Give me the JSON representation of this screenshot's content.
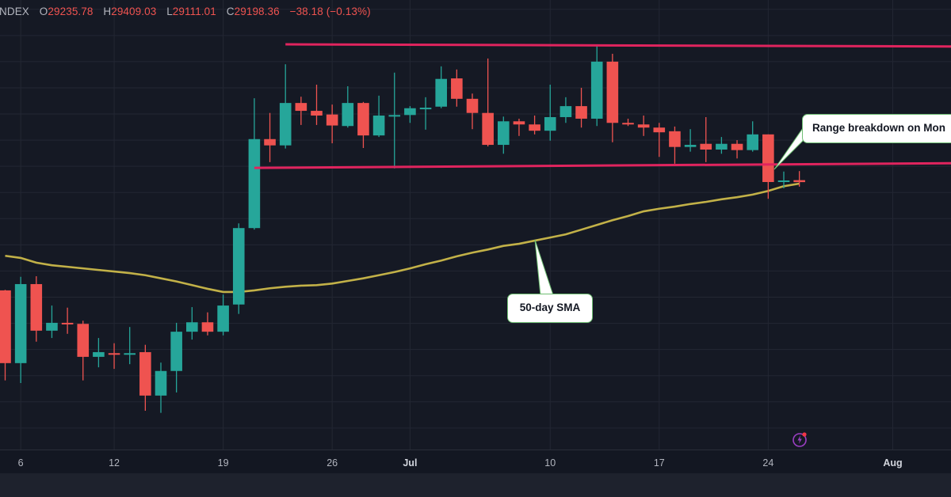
{
  "legend": {
    "symbol": "NDEX",
    "open_label": "O",
    "open": "29235.78",
    "high_label": "H",
    "high": "29409.03",
    "low_label": "L",
    "low": "29111.01",
    "close_label": "C",
    "close": "29198.36",
    "change": "−38.18 (−0.13%)"
  },
  "annotations": {
    "sma_callout": "50-day SMA",
    "range_callout": "Range breakdown on Mon"
  },
  "icons": {
    "alert": "lightning-icon"
  },
  "colors": {
    "up": "#26a69a",
    "down": "#ef5350",
    "sma": "#c2b148",
    "range_lines": "#e0245e",
    "background": "#151924"
  },
  "chart_data": {
    "type": "candlestick",
    "title": "",
    "xlabel": "",
    "ylabel": "",
    "grid": true,
    "y_grid_step": 500,
    "x_ticks": [
      {
        "label": "6",
        "date": "Jun 6"
      },
      {
        "label": "12",
        "date": "Jun 12"
      },
      {
        "label": "19",
        "date": "Jun 19"
      },
      {
        "label": "26",
        "date": "Jun 26"
      },
      {
        "label": "Jul",
        "date": "Jul 1",
        "month": true
      },
      {
        "label": "10",
        "date": "Jul 10"
      },
      {
        "label": "17",
        "date": "Jul 17"
      },
      {
        "label": "24",
        "date": "Jul 24"
      },
      {
        "label": "Aug",
        "date": "Aug 1",
        "month": true
      }
    ],
    "candles": [
      {
        "date": "Jun 5",
        "o": 27130,
        "h": 27140,
        "l": 25410,
        "c": 25740
      },
      {
        "date": "Jun 6",
        "o": 25740,
        "h": 27390,
        "l": 25360,
        "c": 27250
      },
      {
        "date": "Jun 7",
        "o": 27250,
        "h": 27400,
        "l": 26150,
        "c": 26360
      },
      {
        "date": "Jun 8",
        "o": 26360,
        "h": 26840,
        "l": 26220,
        "c": 26510
      },
      {
        "date": "Jun 9",
        "o": 26510,
        "h": 26800,
        "l": 26300,
        "c": 26480
      },
      {
        "date": "Jun 10",
        "o": 26490,
        "h": 26550,
        "l": 25410,
        "c": 25860
      },
      {
        "date": "Jun 11",
        "o": 25860,
        "h": 26220,
        "l": 25660,
        "c": 25950
      },
      {
        "date": "Jun 12",
        "o": 25930,
        "h": 26120,
        "l": 25630,
        "c": 25920
      },
      {
        "date": "Jun 13",
        "o": 25920,
        "h": 26430,
        "l": 25720,
        "c": 25930
      },
      {
        "date": "Jun 14",
        "o": 25950,
        "h": 26090,
        "l": 24830,
        "c": 25120
      },
      {
        "date": "Jun 15",
        "o": 25120,
        "h": 25750,
        "l": 24790,
        "c": 25590
      },
      {
        "date": "Jun 16",
        "o": 25590,
        "h": 26510,
        "l": 25180,
        "c": 26340
      },
      {
        "date": "Jun 17",
        "o": 26340,
        "h": 26810,
        "l": 26190,
        "c": 26520
      },
      {
        "date": "Jun 18",
        "o": 26520,
        "h": 26710,
        "l": 26270,
        "c": 26340
      },
      {
        "date": "Jun 19",
        "o": 26340,
        "h": 27050,
        "l": 26270,
        "c": 26840
      },
      {
        "date": "Jun 20",
        "o": 26860,
        "h": 28410,
        "l": 26680,
        "c": 28320
      },
      {
        "date": "Jun 21",
        "o": 28320,
        "h": 30800,
        "l": 28290,
        "c": 30020
      },
      {
        "date": "Jun 22",
        "o": 30020,
        "h": 30520,
        "l": 29580,
        "c": 29900
      },
      {
        "date": "Jun 23",
        "o": 29900,
        "h": 31450,
        "l": 29840,
        "c": 30710
      },
      {
        "date": "Jun 24",
        "o": 30710,
        "h": 30830,
        "l": 30290,
        "c": 30560
      },
      {
        "date": "Jun 25",
        "o": 30560,
        "h": 31060,
        "l": 30290,
        "c": 30470
      },
      {
        "date": "Jun 26",
        "o": 30490,
        "h": 30680,
        "l": 29940,
        "c": 30280
      },
      {
        "date": "Jun 27",
        "o": 30270,
        "h": 31030,
        "l": 30240,
        "c": 30710
      },
      {
        "date": "Jun 28",
        "o": 30710,
        "h": 30730,
        "l": 29850,
        "c": 30090
      },
      {
        "date": "Jun 29",
        "o": 30090,
        "h": 30850,
        "l": 30060,
        "c": 30470
      },
      {
        "date": "Jun 30",
        "o": 30470,
        "h": 31290,
        "l": 29460,
        "c": 30480
      },
      {
        "date": "Jul 1",
        "o": 30480,
        "h": 30650,
        "l": 30330,
        "c": 30610
      },
      {
        "date": "Jul 2",
        "o": 30610,
        "h": 30820,
        "l": 30200,
        "c": 30620
      },
      {
        "date": "Jul 3",
        "o": 30640,
        "h": 31410,
        "l": 30610,
        "c": 31170
      },
      {
        "date": "Jul 4",
        "o": 31180,
        "h": 31350,
        "l": 30640,
        "c": 30790
      },
      {
        "date": "Jul 5",
        "o": 30790,
        "h": 30890,
        "l": 30210,
        "c": 30520
      },
      {
        "date": "Jul 6",
        "o": 30520,
        "h": 31560,
        "l": 29880,
        "c": 29910
      },
      {
        "date": "Jul 7",
        "o": 29910,
        "h": 30450,
        "l": 29740,
        "c": 30360
      },
      {
        "date": "Jul 8",
        "o": 30360,
        "h": 30410,
        "l": 30080,
        "c": 30300
      },
      {
        "date": "Jul 9",
        "o": 30300,
        "h": 30470,
        "l": 30110,
        "c": 30180
      },
      {
        "date": "Jul 10",
        "o": 30180,
        "h": 31060,
        "l": 29990,
        "c": 30440
      },
      {
        "date": "Jul 11",
        "o": 30440,
        "h": 30820,
        "l": 30330,
        "c": 30650
      },
      {
        "date": "Jul 12",
        "o": 30650,
        "h": 31000,
        "l": 30240,
        "c": 30410
      },
      {
        "date": "Jul 13",
        "o": 30410,
        "h": 31830,
        "l": 30270,
        "c": 31500
      },
      {
        "date": "Jul 14",
        "o": 31500,
        "h": 31650,
        "l": 29960,
        "c": 30330
      },
      {
        "date": "Jul 15",
        "o": 30330,
        "h": 30410,
        "l": 30270,
        "c": 30300
      },
      {
        "date": "Jul 16",
        "o": 30300,
        "h": 30470,
        "l": 30080,
        "c": 30240
      },
      {
        "date": "Jul 17",
        "o": 30240,
        "h": 30330,
        "l": 29680,
        "c": 30150
      },
      {
        "date": "Jul 18",
        "o": 30170,
        "h": 30260,
        "l": 29550,
        "c": 29870
      },
      {
        "date": "Jul 19",
        "o": 29870,
        "h": 30210,
        "l": 29780,
        "c": 29910
      },
      {
        "date": "Jul 20",
        "o": 29930,
        "h": 30440,
        "l": 29580,
        "c": 29820
      },
      {
        "date": "Jul 21",
        "o": 29820,
        "h": 30060,
        "l": 29740,
        "c": 29930
      },
      {
        "date": "Jul 22",
        "o": 29930,
        "h": 30000,
        "l": 29650,
        "c": 29810
      },
      {
        "date": "Jul 23",
        "o": 29810,
        "h": 30360,
        "l": 29780,
        "c": 30110
      },
      {
        "date": "Jul 24",
        "o": 30110,
        "h": 30110,
        "l": 28880,
        "c": 29200
      },
      {
        "date": "Jul 25",
        "o": 29200,
        "h": 29400,
        "l": 29080,
        "c": 29230
      },
      {
        "date": "Jul 26",
        "o": 29235.78,
        "h": 29409.03,
        "l": 29111.01,
        "c": 29198.36
      }
    ],
    "sma50": [
      27790,
      27750,
      27660,
      27610,
      27580,
      27550,
      27520,
      27490,
      27460,
      27420,
      27360,
      27300,
      27230,
      27160,
      27100,
      27100,
      27130,
      27170,
      27200,
      27220,
      27230,
      27260,
      27310,
      27360,
      27420,
      27480,
      27550,
      27630,
      27700,
      27780,
      27850,
      27910,
      27980,
      28020,
      28080,
      28140,
      28200,
      28290,
      28380,
      28470,
      28550,
      28640,
      28690,
      28730,
      28780,
      28820,
      28870,
      28910,
      28960,
      29030,
      29120,
      29170
    ],
    "range_lines": [
      {
        "from_date": "Jun 23",
        "from_price": 31830,
        "to_date": "Aug 5",
        "to_price": 31790
      },
      {
        "from_date": "Jun 21",
        "from_price": 29470,
        "to_date": "Aug 5",
        "to_price": 29560
      }
    ]
  }
}
